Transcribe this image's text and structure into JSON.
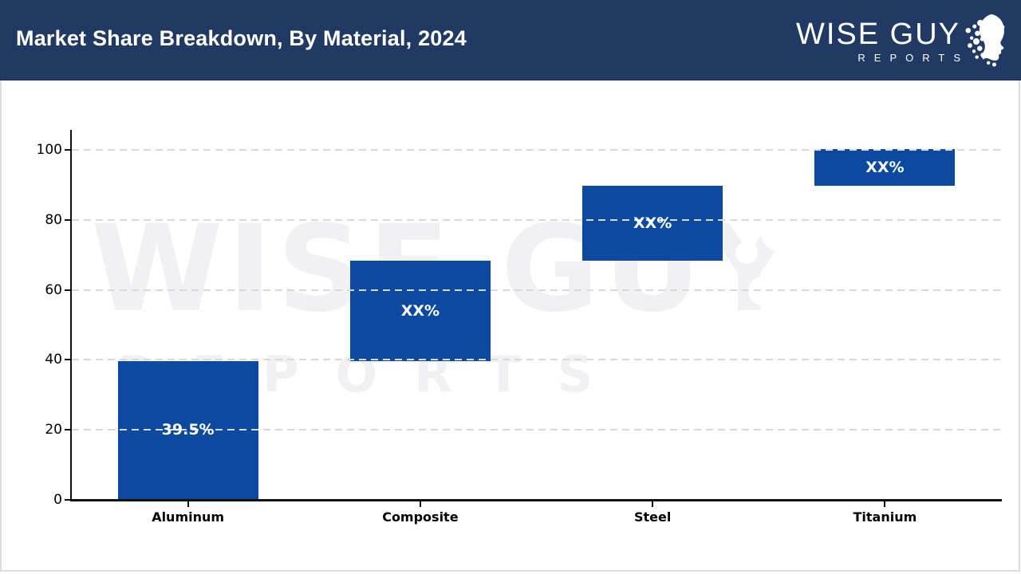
{
  "header": {
    "title": "Market Share Breakdown, By Material, 2024",
    "brand": {
      "name": "WISE GUY",
      "subtitle": "REPORTS"
    }
  },
  "watermark": {
    "line1": "WISE GUY",
    "line2": "REPORTS"
  },
  "chart_data": {
    "type": "bar",
    "subtype": "waterfall",
    "title": "Market Share Breakdown, By Material, 2024",
    "categories": [
      "Aluminum",
      "Composite",
      "Steel",
      "Titanium"
    ],
    "segments": [
      {
        "category": "Aluminum",
        "start": 0,
        "end": 39.5,
        "label": "39.5%"
      },
      {
        "category": "Composite",
        "start": 39.5,
        "end": 68.2,
        "label": "XX%"
      },
      {
        "category": "Steel",
        "start": 68.2,
        "end": 89.5,
        "label": "XX%"
      },
      {
        "category": "Titanium",
        "start": 89.5,
        "end": 100,
        "label": "XX%"
      }
    ],
    "yticks": [
      0,
      20,
      40,
      60,
      80,
      100
    ],
    "ylim": [
      0,
      105
    ],
    "xlabel": "",
    "ylabel": "",
    "grid": "horizontal-dashed",
    "legend": "none",
    "bar_color": "#0b4a9e",
    "bar_label_color": "#ffffff",
    "grid_color": "#d9d9d9",
    "axis_color": "#111111"
  },
  "colors": {
    "header_bg": "#213a63",
    "card_border": "#dcdcdc",
    "watermark": "#f1f1f3"
  }
}
